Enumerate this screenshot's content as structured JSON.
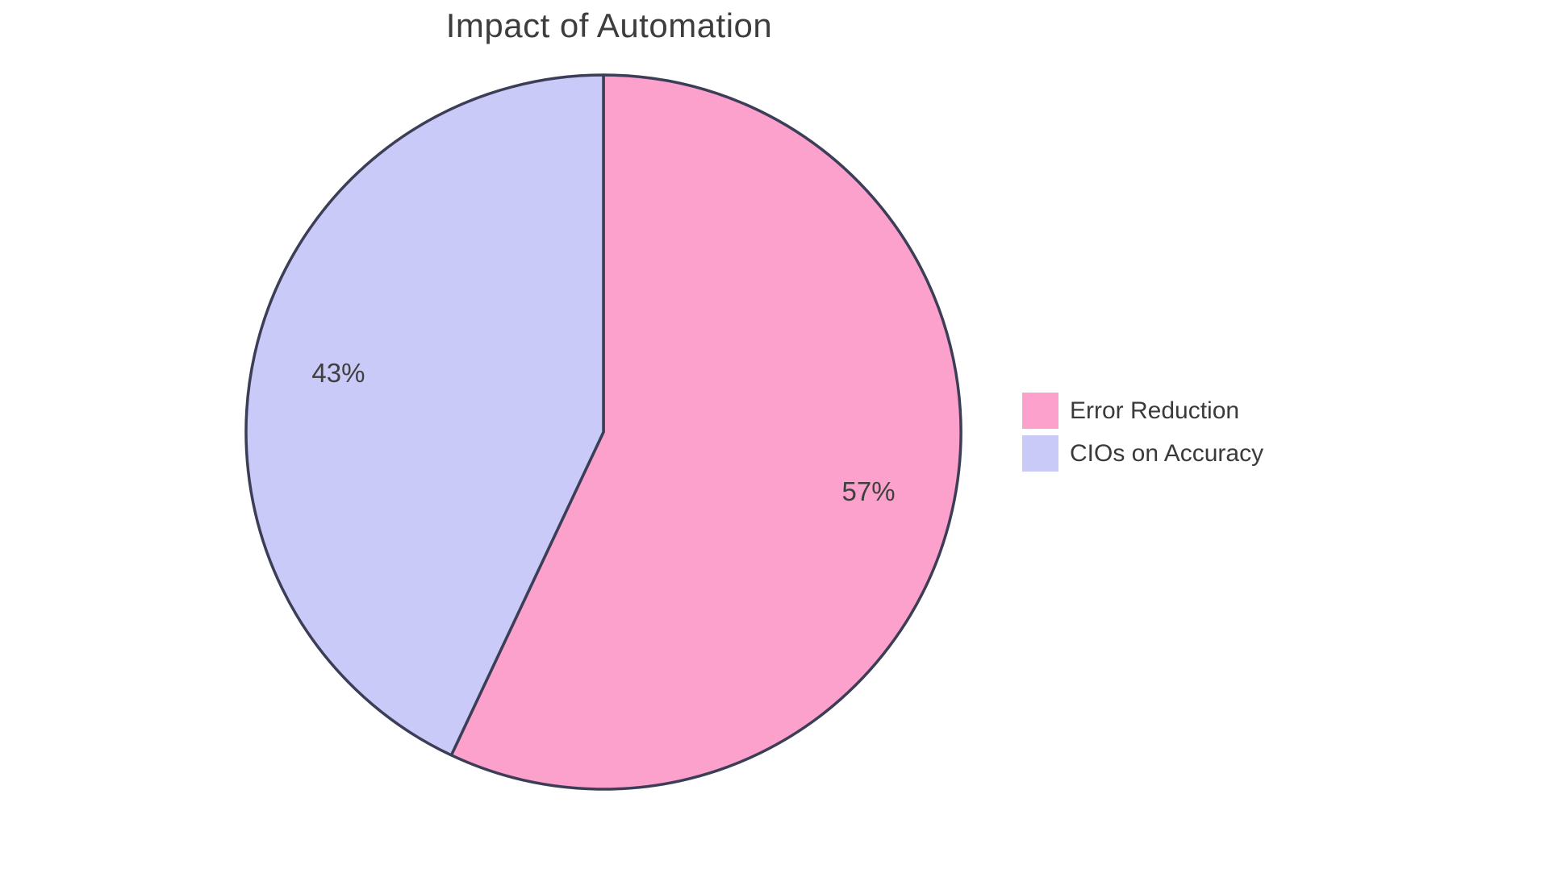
{
  "chart_data": {
    "type": "pie",
    "title": "Impact of Automation",
    "slices": [
      {
        "label": "Error Reduction",
        "value": 57,
        "pct_label": "57%",
        "color": "#FBA1CB"
      },
      {
        "label": "CIOs on Accuracy",
        "value": 43,
        "pct_label": "43%",
        "color": "#C9CAF7"
      }
    ],
    "start_angle_deg": 0,
    "direction": "clockwise",
    "stroke_color": "#3B3E56",
    "stroke_width": 3.5,
    "label_color": "#3f3f3f",
    "legend_position": "right",
    "background": "#ffffff"
  }
}
